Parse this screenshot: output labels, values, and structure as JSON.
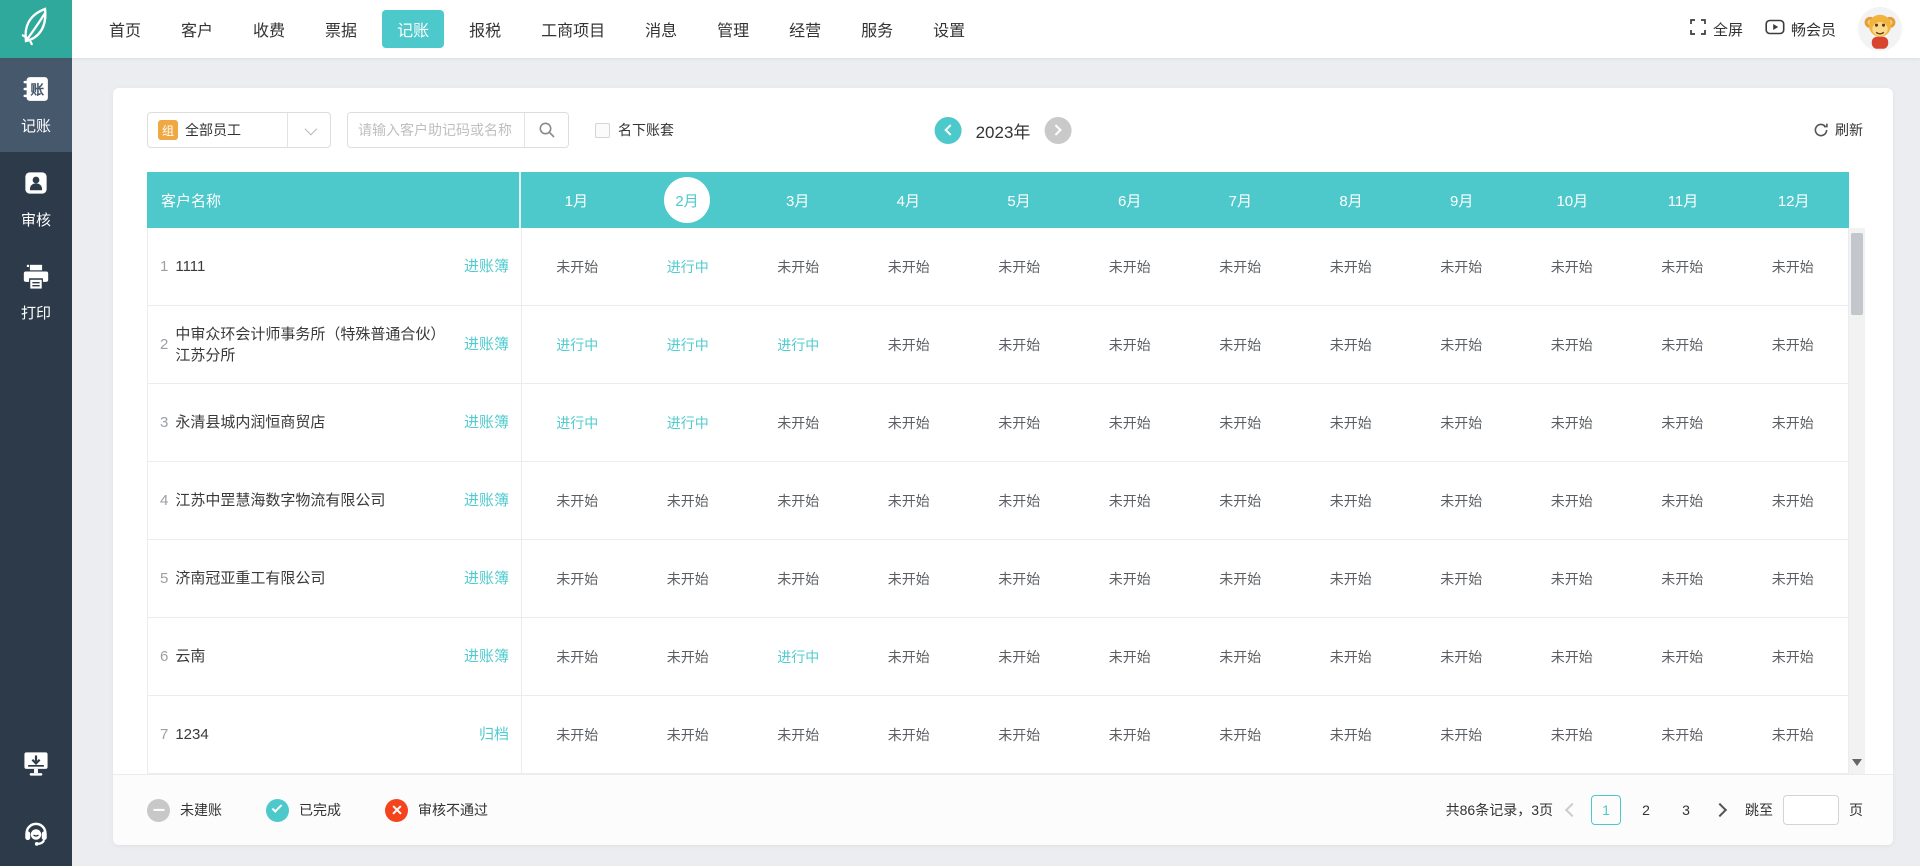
{
  "colors": {
    "accent": "#4dc9cc",
    "link": "#52cbce",
    "pending_text": "#5b5f63",
    "danger": "#f5431d",
    "legend_gray": "#c8c8c8",
    "badge_orange": "#f0a843",
    "sidebar": "#2d3a49"
  },
  "topnav": {
    "items": [
      {
        "label": "首页",
        "active": false
      },
      {
        "label": "客户",
        "active": false
      },
      {
        "label": "收费",
        "active": false
      },
      {
        "label": "票据",
        "active": false
      },
      {
        "label": "记账",
        "active": true
      },
      {
        "label": "报税",
        "active": false
      },
      {
        "label": "工商项目",
        "active": false
      },
      {
        "label": "消息",
        "active": false
      },
      {
        "label": "管理",
        "active": false
      },
      {
        "label": "经营",
        "active": false
      },
      {
        "label": "服务",
        "active": false
      },
      {
        "label": "设置",
        "active": false
      }
    ],
    "fullscreen_label": "全屏",
    "member_label": "畅会员"
  },
  "sidebar": {
    "items": [
      {
        "label": "记账",
        "icon": "ledger-icon",
        "active": true
      },
      {
        "label": "审核",
        "icon": "audit-icon",
        "active": false
      },
      {
        "label": "打印",
        "icon": "print-icon",
        "active": false
      }
    ],
    "bottom_icons": [
      "download-client-icon",
      "support-icon"
    ]
  },
  "toolbar": {
    "employee_filter": {
      "badge": "组",
      "value": "全部员工"
    },
    "search_placeholder": "请输入客户助记码或名称",
    "checkbox_label": "名下账套",
    "year": "2023年",
    "refresh_label": "刷新"
  },
  "table": {
    "name_header": "客户名称",
    "months": [
      "1月",
      "2月",
      "3月",
      "4月",
      "5月",
      "6月",
      "7月",
      "8月",
      "9月",
      "10月",
      "11月",
      "12月"
    ],
    "current_month_index": 1,
    "status_styles": {
      "未开始": "pending",
      "进行中": "in-progress"
    },
    "rows": [
      {
        "num": "1",
        "name": "1111",
        "link": "进账簿",
        "statuses": [
          "未开始",
          "进行中",
          "未开始",
          "未开始",
          "未开始",
          "未开始",
          "未开始",
          "未开始",
          "未开始",
          "未开始",
          "未开始",
          "未开始"
        ]
      },
      {
        "num": "2",
        "name": "中审众环会计师事务所（特殊普通合伙）江苏分所",
        "link": "进账簿",
        "statuses": [
          "进行中",
          "进行中",
          "进行中",
          "未开始",
          "未开始",
          "未开始",
          "未开始",
          "未开始",
          "未开始",
          "未开始",
          "未开始",
          "未开始"
        ]
      },
      {
        "num": "3",
        "name": "永清县城内润恒商贸店",
        "link": "进账簿",
        "statuses": [
          "进行中",
          "进行中",
          "未开始",
          "未开始",
          "未开始",
          "未开始",
          "未开始",
          "未开始",
          "未开始",
          "未开始",
          "未开始",
          "未开始"
        ]
      },
      {
        "num": "4",
        "name": "江苏中罡慧海数字物流有限公司",
        "link": "进账簿",
        "statuses": [
          "未开始",
          "未开始",
          "未开始",
          "未开始",
          "未开始",
          "未开始",
          "未开始",
          "未开始",
          "未开始",
          "未开始",
          "未开始",
          "未开始"
        ]
      },
      {
        "num": "5",
        "name": "济南冠亚重工有限公司",
        "link": "进账簿",
        "statuses": [
          "未开始",
          "未开始",
          "未开始",
          "未开始",
          "未开始",
          "未开始",
          "未开始",
          "未开始",
          "未开始",
          "未开始",
          "未开始",
          "未开始"
        ]
      },
      {
        "num": "6",
        "name": "云南",
        "link": "进账簿",
        "statuses": [
          "未开始",
          "未开始",
          "进行中",
          "未开始",
          "未开始",
          "未开始",
          "未开始",
          "未开始",
          "未开始",
          "未开始",
          "未开始",
          "未开始"
        ]
      },
      {
        "num": "7",
        "name": "1234",
        "link": "归档",
        "statuses": [
          "未开始",
          "未开始",
          "未开始",
          "未开始",
          "未开始",
          "未开始",
          "未开始",
          "未开始",
          "未开始",
          "未开始",
          "未开始",
          "未开始"
        ]
      }
    ]
  },
  "legend": [
    {
      "label": "未建账",
      "type": "minus"
    },
    {
      "label": "已完成",
      "type": "check"
    },
    {
      "label": "审核不通过",
      "type": "cross"
    }
  ],
  "pagination": {
    "summary": "共86条记录，3页",
    "pages": [
      "1",
      "2",
      "3"
    ],
    "active_page": "1",
    "jump_label": "跳至",
    "page_unit": "页"
  }
}
